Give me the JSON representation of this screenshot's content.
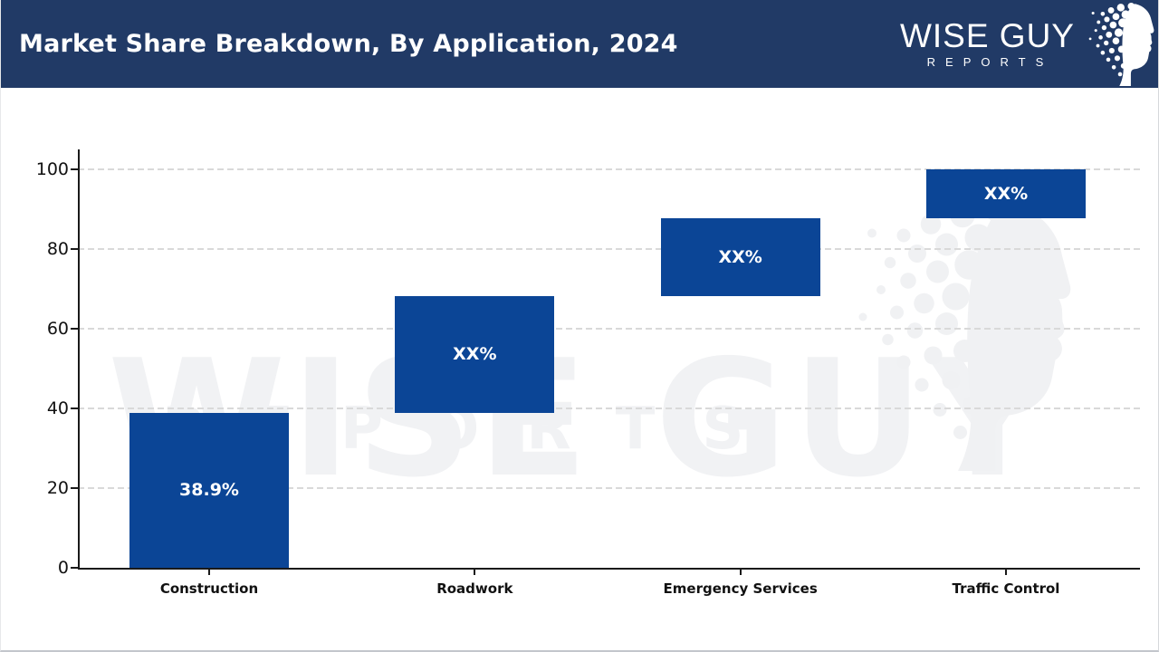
{
  "header": {
    "title": "Market Share Breakdown, By Application, 2024",
    "logo": {
      "wordmark": "WISE GUY",
      "subtitle": "REPORTS"
    }
  },
  "watermark": {
    "wordmark": "WISE GUY",
    "subtitle": "REPORTS"
  },
  "colors": {
    "header_bg": "#213a66",
    "bar_blue": "#0b4596",
    "grid_line": "#d9d9d9",
    "axis_line": "#1a1a1a",
    "bar_label_text": "#ffffff"
  },
  "chart_data": {
    "type": "bar",
    "variant": "waterfall",
    "title": "Market Share Breakdown, By Application, 2024",
    "categories": [
      "Construction",
      "Roadwork",
      "Emergency Services",
      "Traffic Control"
    ],
    "series": [
      {
        "name": "Market share (%)",
        "segment_start": [
          0,
          38.9,
          68.2,
          87.7
        ],
        "segment_end": [
          38.9,
          68.2,
          87.7,
          100
        ]
      }
    ],
    "bar_labels": [
      "38.9%",
      "XX%",
      "XX%",
      "XX%"
    ],
    "xlabel": "",
    "ylabel": "",
    "ylim": [
      0,
      100
    ],
    "yticks": [
      0,
      20,
      40,
      60,
      80,
      100
    ],
    "grid": "horizontal-dashed",
    "legend": "none"
  }
}
